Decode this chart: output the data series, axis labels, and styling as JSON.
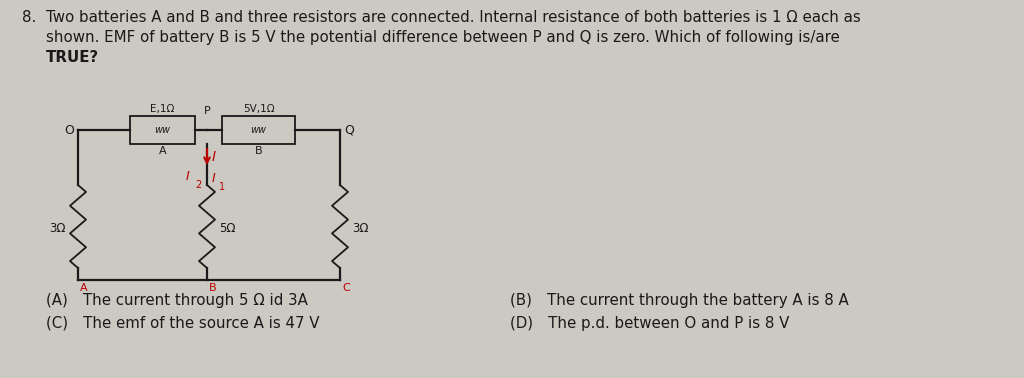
{
  "background_color": "#ccc8c2",
  "text_color": "#1a1a1a",
  "circuit_color": "#1a1a1a",
  "red_color": "#bb0000",
  "font_size_question": 10.8,
  "font_size_options": 10.8,
  "question_num": "8.",
  "line1": "Two batteries A and B and three resistors are connected. Internal resistance of both batteries is 1 Ω each as",
  "line2": "shown. EMF of battery B is 5 V the potential difference between P and Q is zero. Which of following is/are",
  "line3": "TRUE?",
  "optA": "(A) The current through 5 Ω id 3A",
  "optC": "(C) The emf of the source A is 47 V",
  "optB": "(B) The current through the battery A is 8 A",
  "optD": "(D) The p.d. between O and P is 8 V"
}
